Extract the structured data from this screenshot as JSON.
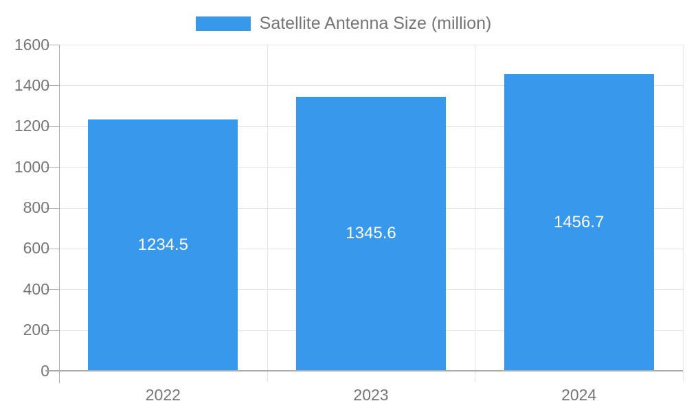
{
  "legend": {
    "label": "Satellite Antenna Size (million)",
    "swatch_color": "#3898ec"
  },
  "chart_data": {
    "type": "bar",
    "title": "Satellite Antenna Size (million)",
    "categories": [
      "2022",
      "2023",
      "2024"
    ],
    "values": [
      1234.5,
      1345.6,
      1456.7
    ],
    "value_labels": [
      "1234.5",
      "1345.6",
      "1456.7"
    ],
    "ylim": [
      0,
      1600
    ],
    "yticks": [
      0,
      200,
      400,
      600,
      800,
      1000,
      1200,
      1400,
      1600
    ],
    "ytick_labels": [
      "0",
      "200",
      "400",
      "600",
      "800",
      "1000",
      "1200",
      "1400",
      "1600"
    ],
    "xlabel": "",
    "ylabel": "",
    "grid": true,
    "legend_position": "top",
    "bar_color": "#3898ec",
    "value_label_color": "#ffffff",
    "tick_label_color": "#757575"
  }
}
